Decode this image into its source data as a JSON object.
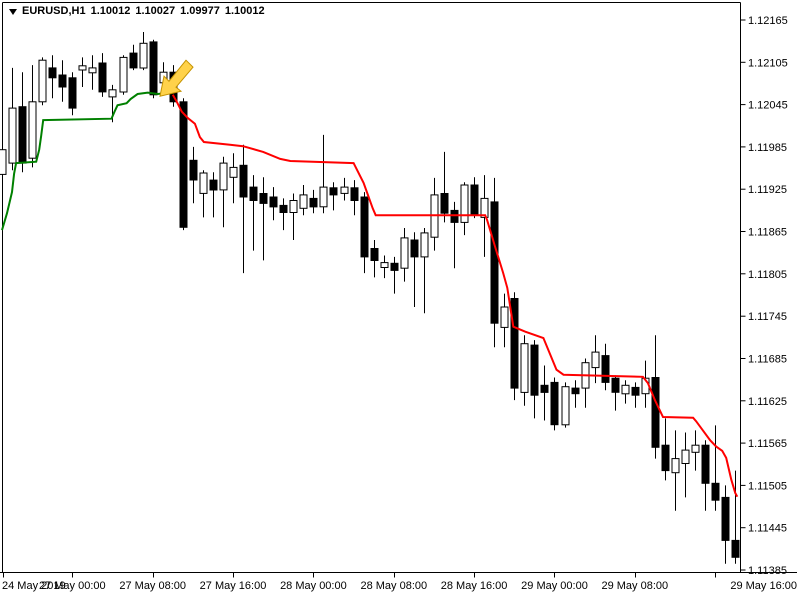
{
  "window": {
    "symbol_period": "EURUSD,H1",
    "ohlc": {
      "open": "1.10012",
      "high": "1.10027",
      "low": "1.09977",
      "close": "1.10012"
    }
  },
  "colors": {
    "background": "#FFFFFF",
    "frame": "#000000",
    "text": "#000000",
    "bull_fill": "#FFFFFF",
    "bear_fill": "#000000",
    "candle_outline": "#000000",
    "uptrend_line": "#008000",
    "downtrend_line": "#FF0000",
    "signal_arrow_fill": "#FFD24A",
    "signal_arrow_outline": "#C49200"
  },
  "y_axis": {
    "side": "right",
    "labels": [
      "1.12165",
      "1.12105",
      "1.12045",
      "1.11985",
      "1.11925",
      "1.11865",
      "1.11805",
      "1.11745",
      "1.11685",
      "1.11625",
      "1.11565",
      "1.11505",
      "1.11445",
      "1.11385"
    ]
  },
  "x_axis": {
    "labels": [
      {
        "text": "24 May 2019",
        "bar": 0
      },
      {
        "text": "27 May 00:00",
        "bar": 7
      },
      {
        "text": "27 May 08:00",
        "bar": 15
      },
      {
        "text": "27 May 16:00",
        "bar": 23
      },
      {
        "text": "28 May 00:00",
        "bar": 31
      },
      {
        "text": "28 May 08:00",
        "bar": 39
      },
      {
        "text": "28 May 16:00",
        "bar": 47
      },
      {
        "text": "29 May 00:00",
        "bar": 55
      },
      {
        "text": "29 May 08:00",
        "bar": 63
      },
      {
        "text": "29 May 16:00",
        "bar": 71
      }
    ]
  },
  "chart_data": {
    "type": "candlestick",
    "title": "EURUSD,H1 1.10012 1.10027 1.09977 1.10012",
    "symbol": "EURUSD",
    "timeframe": "H1",
    "y_range": {
      "top": 1.12165,
      "bottom": 1.11385,
      "tick_step": 0.0006
    },
    "grid": false,
    "candles": [
      {
        "t": "24 May 17:00",
        "o": 1.11946,
        "h": 1.11988,
        "l": 1.11938,
        "c": 1.11981
      },
      {
        "t": "24 May 18:00",
        "o": 1.11962,
        "h": 1.12097,
        "l": 1.11952,
        "c": 1.1204
      },
      {
        "t": "24 May 19:00",
        "o": 1.12042,
        "h": 1.12091,
        "l": 1.11949,
        "c": 1.11962
      },
      {
        "t": "24 May 20:00",
        "o": 1.11969,
        "h": 1.12101,
        "l": 1.11956,
        "c": 1.12049
      },
      {
        "t": "24 May 21:00",
        "o": 1.12049,
        "h": 1.12112,
        "l": 1.12044,
        "c": 1.12108
      },
      {
        "t": "24 May 22:00",
        "o": 1.12097,
        "h": 1.12115,
        "l": 1.12054,
        "c": 1.12083
      },
      {
        "t": "24 May 23:00",
        "o": 1.12087,
        "h": 1.12108,
        "l": 1.12049,
        "c": 1.1207
      },
      {
        "t": "27 May 00:00",
        "o": 1.12083,
        "h": 1.12091,
        "l": 1.1203,
        "c": 1.1204
      },
      {
        "t": "27 May 01:00",
        "o": 1.12094,
        "h": 1.12112,
        "l": 1.1207,
        "c": 1.121
      },
      {
        "t": "27 May 02:00",
        "o": 1.1209,
        "h": 1.12115,
        "l": 1.12066,
        "c": 1.12097
      },
      {
        "t": "27 May 03:00",
        "o": 1.12104,
        "h": 1.12118,
        "l": 1.12056,
        "c": 1.12063
      },
      {
        "t": "27 May 04:00",
        "o": 1.12056,
        "h": 1.12073,
        "l": 1.1202,
        "c": 1.12066
      },
      {
        "t": "27 May 05:00",
        "o": 1.12063,
        "h": 1.12115,
        "l": 1.12059,
        "c": 1.12112
      },
      {
        "t": "27 May 06:00",
        "o": 1.12118,
        "h": 1.1213,
        "l": 1.12094,
        "c": 1.12097
      },
      {
        "t": "27 May 07:00",
        "o": 1.12097,
        "h": 1.12148,
        "l": 1.12094,
        "c": 1.12132
      },
      {
        "t": "27 May 08:00",
        "o": 1.12134,
        "h": 1.12137,
        "l": 1.12054,
        "c": 1.12059
      },
      {
        "t": "27 May 09:00",
        "o": 1.12076,
        "h": 1.12105,
        "l": 1.12059,
        "c": 1.12091
      },
      {
        "t": "27 May 10:00",
        "o": 1.12091,
        "h": 1.12101,
        "l": 1.12042,
        "c": 1.12049
      },
      {
        "t": "27 May 11:00",
        "o": 1.12049,
        "h": 1.12054,
        "l": 1.11867,
        "c": 1.11871
      },
      {
        "t": "27 May 12:00",
        "o": 1.11966,
        "h": 1.11985,
        "l": 1.11905,
        "c": 1.11938
      },
      {
        "t": "27 May 13:00",
        "o": 1.11919,
        "h": 1.11952,
        "l": 1.11885,
        "c": 1.11948
      },
      {
        "t": "27 May 14:00",
        "o": 1.11938,
        "h": 1.11949,
        "l": 1.11885,
        "c": 1.11924
      },
      {
        "t": "27 May 15:00",
        "o": 1.11924,
        "h": 1.11971,
        "l": 1.11871,
        "c": 1.11962
      },
      {
        "t": "27 May 16:00",
        "o": 1.11942,
        "h": 1.11976,
        "l": 1.11905,
        "c": 1.11956
      },
      {
        "t": "27 May 17:00",
        "o": 1.11959,
        "h": 1.11988,
        "l": 1.11806,
        "c": 1.11914
      },
      {
        "t": "27 May 18:00",
        "o": 1.11928,
        "h": 1.11945,
        "l": 1.11838,
        "c": 1.11909
      },
      {
        "t": "27 May 19:00",
        "o": 1.11919,
        "h": 1.11942,
        "l": 1.11824,
        "c": 1.11905
      },
      {
        "t": "27 May 20:00",
        "o": 1.11914,
        "h": 1.11928,
        "l": 1.11881,
        "c": 1.119
      },
      {
        "t": "27 May 21:00",
        "o": 1.11902,
        "h": 1.11912,
        "l": 1.11867,
        "c": 1.11892
      },
      {
        "t": "27 May 22:00",
        "o": 1.11892,
        "h": 1.11919,
        "l": 1.11853,
        "c": 1.11909
      },
      {
        "t": "27 May 23:00",
        "o": 1.11898,
        "h": 1.11931,
        "l": 1.11888,
        "c": 1.11917
      },
      {
        "t": "28 May 00:00",
        "o": 1.11912,
        "h": 1.11924,
        "l": 1.11891,
        "c": 1.119
      },
      {
        "t": "28 May 01:00",
        "o": 1.119,
        "h": 1.12002,
        "l": 1.11891,
        "c": 1.11928
      },
      {
        "t": "28 May 02:00",
        "o": 1.11927,
        "h": 1.11935,
        "l": 1.11895,
        "c": 1.11917
      },
      {
        "t": "28 May 03:00",
        "o": 1.11919,
        "h": 1.11941,
        "l": 1.11909,
        "c": 1.11928
      },
      {
        "t": "28 May 04:00",
        "o": 1.11927,
        "h": 1.11938,
        "l": 1.11888,
        "c": 1.11909
      },
      {
        "t": "28 May 05:00",
        "o": 1.11914,
        "h": 1.11921,
        "l": 1.11806,
        "c": 1.11829
      },
      {
        "t": "28 May 06:00",
        "o": 1.11841,
        "h": 1.11853,
        "l": 1.118,
        "c": 1.11824
      },
      {
        "t": "28 May 07:00",
        "o": 1.11814,
        "h": 1.11831,
        "l": 1.11799,
        "c": 1.11821
      },
      {
        "t": "28 May 08:00",
        "o": 1.1182,
        "h": 1.11829,
        "l": 1.11777,
        "c": 1.1181
      },
      {
        "t": "28 May 09:00",
        "o": 1.11813,
        "h": 1.1187,
        "l": 1.11794,
        "c": 1.11856
      },
      {
        "t": "28 May 10:00",
        "o": 1.11853,
        "h": 1.11864,
        "l": 1.11758,
        "c": 1.11829
      },
      {
        "t": "28 May 11:00",
        "o": 1.11829,
        "h": 1.1187,
        "l": 1.11749,
        "c": 1.11863
      },
      {
        "t": "28 May 12:00",
        "o": 1.11857,
        "h": 1.11941,
        "l": 1.11838,
        "c": 1.11917
      },
      {
        "t": "28 May 13:00",
        "o": 1.11919,
        "h": 1.11978,
        "l": 1.11878,
        "c": 1.11891
      },
      {
        "t": "28 May 14:00",
        "o": 1.11895,
        "h": 1.11907,
        "l": 1.11813,
        "c": 1.11878
      },
      {
        "t": "28 May 15:00",
        "o": 1.11878,
        "h": 1.11935,
        "l": 1.1186,
        "c": 1.11931
      },
      {
        "t": "28 May 16:00",
        "o": 1.11931,
        "h": 1.11942,
        "l": 1.11884,
        "c": 1.11888
      },
      {
        "t": "28 May 17:00",
        "o": 1.11885,
        "h": 1.11945,
        "l": 1.11829,
        "c": 1.11912
      },
      {
        "t": "28 May 18:00",
        "o": 1.11907,
        "h": 1.11941,
        "l": 1.11701,
        "c": 1.11735
      },
      {
        "t": "28 May 19:00",
        "o": 1.11729,
        "h": 1.11777,
        "l": 1.11701,
        "c": 1.11758
      },
      {
        "t": "28 May 20:00",
        "o": 1.1177,
        "h": 1.11779,
        "l": 1.11626,
        "c": 1.11643
      },
      {
        "t": "28 May 21:00",
        "o": 1.11637,
        "h": 1.11718,
        "l": 1.11618,
        "c": 1.11706
      },
      {
        "t": "28 May 22:00",
        "o": 1.11704,
        "h": 1.11711,
        "l": 1.116,
        "c": 1.11633
      },
      {
        "t": "28 May 23:00",
        "o": 1.11647,
        "h": 1.11675,
        "l": 1.11597,
        "c": 1.11637
      },
      {
        "t": "29 May 00:00",
        "o": 1.11651,
        "h": 1.11658,
        "l": 1.11583,
        "c": 1.11591
      },
      {
        "t": "29 May 01:00",
        "o": 1.11591,
        "h": 1.11651,
        "l": 1.11587,
        "c": 1.11645
      },
      {
        "t": "29 May 02:00",
        "o": 1.11643,
        "h": 1.11654,
        "l": 1.11615,
        "c": 1.11635
      },
      {
        "t": "29 May 03:00",
        "o": 1.11643,
        "h": 1.11685,
        "l": 1.11615,
        "c": 1.11679
      },
      {
        "t": "29 May 04:00",
        "o": 1.11672,
        "h": 1.11718,
        "l": 1.1165,
        "c": 1.11694
      },
      {
        "t": "29 May 05:00",
        "o": 1.11689,
        "h": 1.11706,
        "l": 1.1164,
        "c": 1.11651
      },
      {
        "t": "29 May 06:00",
        "o": 1.11657,
        "h": 1.11661,
        "l": 1.11611,
        "c": 1.11637
      },
      {
        "t": "29 May 07:00",
        "o": 1.11635,
        "h": 1.11654,
        "l": 1.11621,
        "c": 1.11647
      },
      {
        "t": "29 May 08:00",
        "o": 1.11644,
        "h": 1.11651,
        "l": 1.11615,
        "c": 1.11633
      },
      {
        "t": "29 May 09:00",
        "o": 1.11635,
        "h": 1.11682,
        "l": 1.11615,
        "c": 1.11657
      },
      {
        "t": "29 May 10:00",
        "o": 1.11658,
        "h": 1.11718,
        "l": 1.11543,
        "c": 1.11559
      },
      {
        "t": "29 May 11:00",
        "o": 1.11562,
        "h": 1.116,
        "l": 1.11512,
        "c": 1.11526
      },
      {
        "t": "29 May 12:00",
        "o": 1.11523,
        "h": 1.11583,
        "l": 1.11469,
        "c": 1.11543
      },
      {
        "t": "29 May 13:00",
        "o": 1.11536,
        "h": 1.1158,
        "l": 1.11488,
        "c": 1.11555
      },
      {
        "t": "29 May 14:00",
        "o": 1.11552,
        "h": 1.11583,
        "l": 1.11526,
        "c": 1.11562
      },
      {
        "t": "29 May 15:00",
        "o": 1.11562,
        "h": 1.11569,
        "l": 1.11469,
        "c": 1.11508
      },
      {
        "t": "29 May 16:00",
        "o": 1.11508,
        "h": 1.1159,
        "l": 1.11469,
        "c": 1.11484
      },
      {
        "t": "29 May 17:00",
        "o": 1.11488,
        "h": 1.11505,
        "l": 1.11394,
        "c": 1.11427
      },
      {
        "t": "29 May 18:00",
        "o": 1.11427,
        "h": 1.11526,
        "l": 1.11394,
        "c": 1.11403
      }
    ],
    "indicator": {
      "name": "trend-line-indicator",
      "up_segment": {
        "color": "#008000",
        "points": [
          [
            0,
            1.11867
          ],
          [
            0.5,
            1.11891
          ],
          [
            1.0,
            1.11921
          ],
          [
            1.2,
            1.11947
          ],
          [
            1.4,
            1.11962
          ],
          [
            3.4,
            1.11964
          ],
          [
            3.7,
            1.11981
          ],
          [
            3.9,
            1.12001
          ],
          [
            4.1,
            1.12023
          ],
          [
            10.9,
            1.12025
          ],
          [
            11.2,
            1.12035
          ],
          [
            11.5,
            1.12044
          ],
          [
            12.4,
            1.12047
          ],
          [
            12.8,
            1.12053
          ],
          [
            13.5,
            1.1206
          ],
          [
            14.5,
            1.12062
          ],
          [
            15.5,
            1.1206
          ],
          [
            16.7,
            1.12062
          ],
          [
            17.0,
            1.12063
          ]
        ]
      },
      "down_segment": {
        "color": "#FF0000",
        "points": [
          [
            17.0,
            1.12059
          ],
          [
            17.4,
            1.12049
          ],
          [
            17.9,
            1.12035
          ],
          [
            18.5,
            1.12026
          ],
          [
            19.2,
            1.12018
          ],
          [
            19.7,
            1.11999
          ],
          [
            20.1,
            1.11992
          ],
          [
            22.7,
            1.11988
          ],
          [
            24.0,
            1.11986
          ],
          [
            26.0,
            1.11978
          ],
          [
            27.7,
            1.11968
          ],
          [
            28.7,
            1.11965
          ],
          [
            35.0,
            1.11962
          ],
          [
            36.0,
            1.11934
          ],
          [
            36.9,
            1.11898
          ],
          [
            37.2,
            1.11888
          ],
          [
            48.1,
            1.11888
          ],
          [
            48.3,
            1.11881
          ],
          [
            49.1,
            1.11843
          ],
          [
            49.9,
            1.11806
          ],
          [
            50.3,
            1.11785
          ],
          [
            50.9,
            1.1173
          ],
          [
            52.1,
            1.11723
          ],
          [
            53.9,
            1.11714
          ],
          [
            55.2,
            1.11669
          ],
          [
            55.9,
            1.11662
          ],
          [
            63.8,
            1.11659
          ],
          [
            64.3,
            1.1165
          ],
          [
            65.0,
            1.11626
          ],
          [
            65.8,
            1.11602
          ],
          [
            68.8,
            1.11601
          ],
          [
            69.1,
            1.11596
          ],
          [
            70.5,
            1.11569
          ],
          [
            71.1,
            1.1156
          ],
          [
            71.7,
            1.11554
          ],
          [
            72.1,
            1.11544
          ],
          [
            72.6,
            1.11513
          ],
          [
            73.0,
            1.11494
          ],
          [
            73.2,
            1.11489
          ]
        ]
      }
    },
    "marker": {
      "type": "trend-change-arrow",
      "bar": 15.73,
      "price": 1.12057,
      "color": "gold"
    }
  }
}
